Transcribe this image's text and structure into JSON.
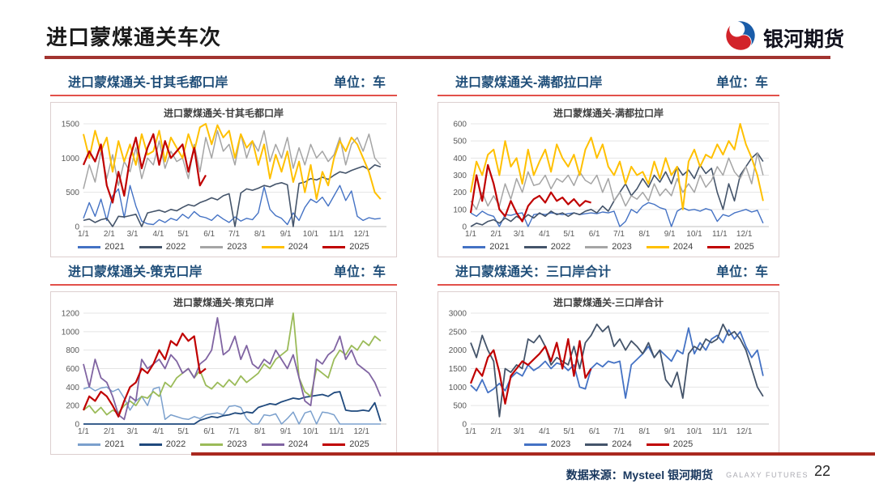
{
  "slide": {
    "title": "进口蒙煤通关车次",
    "logo_text": "银河期货",
    "footer_source": "数据来源：Mysteel 银河期货",
    "footer_brand": "GALAXY FUTURES",
    "page_number": "22"
  },
  "colors": {
    "title_rule": "#A23430",
    "header_text": "#1F4E79",
    "header_rule": "#E2504A",
    "footer_rule": "#A9291F",
    "logo_blue": "#1A5CA8",
    "logo_red": "#D2232A"
  },
  "chart_data": [
    {
      "type": "line",
      "header_title": "进口蒙煤通关-甘其毛都口岸",
      "unit_label": "单位：车",
      "title": "进口蒙煤通关-甘其毛都口岸",
      "xlabel": "",
      "ylabel": "",
      "ylim": [
        0,
        1500
      ],
      "ytick_step": 500,
      "grid": true,
      "legend_position": "bottom",
      "sample_interval_days": 7,
      "x_tick_labels": [
        "1/1",
        "2/1",
        "3/1",
        "4/1",
        "5/1",
        "6/1",
        "7/1",
        "8/1",
        "9/1",
        "10/1",
        "11/1",
        "12/1"
      ],
      "series": [
        {
          "name": "2021",
          "color": "#4472C4",
          "width": 1.4,
          "values": [
            120,
            350,
            150,
            400,
            90,
            450,
            550,
            130,
            600,
            300,
            80,
            40,
            30,
            100,
            60,
            120,
            90,
            180,
            120,
            220,
            150,
            130,
            90,
            170,
            110,
            60,
            140,
            80,
            120,
            100,
            200,
            580,
            250,
            160,
            120,
            30,
            200,
            90,
            280,
            400,
            350,
            430,
            300,
            450,
            600,
            380,
            520,
            150,
            90,
            130,
            110,
            120
          ]
        },
        {
          "name": "2022",
          "color": "#44546A",
          "width": 1.6,
          "values": [
            90,
            110,
            60,
            100,
            120,
            0,
            150,
            140,
            160,
            180,
            0,
            200,
            220,
            240,
            210,
            250,
            230,
            280,
            320,
            300,
            350,
            380,
            420,
            390,
            450,
            480,
            0,
            490,
            550,
            530,
            560,
            600,
            580,
            620,
            640,
            610,
            0,
            630,
            650,
            700,
            680,
            720,
            690,
            750,
            800,
            780,
            820,
            850,
            880,
            830,
            900,
            870
          ]
        },
        {
          "name": "2023",
          "color": "#A5A5A5",
          "width": 1.5,
          "values": [
            550,
            900,
            650,
            1100,
            700,
            1050,
            600,
            950,
            800,
            1150,
            700,
            1000,
            900,
            1250,
            850,
            1100,
            950,
            1000,
            700,
            1200,
            800,
            1300,
            1000,
            1400,
            1100,
            1200,
            900,
            1350,
            1000,
            1250,
            1100,
            1400,
            950,
            1200,
            1000,
            1300,
            850,
            1150,
            900,
            1200,
            1000,
            1100,
            950,
            1050,
            1300,
            900,
            1200,
            1300,
            1100,
            1350,
            1000,
            900
          ]
        },
        {
          "name": "2024",
          "color": "#FFC000",
          "width": 2,
          "values": [
            1350,
            1000,
            1400,
            1100,
            1300,
            800,
            1250,
            950,
            1200,
            900,
            1350,
            1050,
            1100,
            1400,
            950,
            1300,
            1150,
            1000,
            1350,
            1100,
            1450,
            1500,
            1200,
            1480,
            1300,
            1400,
            1000,
            1350,
            1150,
            1250,
            900,
            1200,
            700,
            1050,
            800,
            1100,
            650,
            950,
            500,
            900,
            400,
            800,
            600,
            1000,
            1250,
            1100,
            1300,
            1200,
            1000,
            800,
            500,
            400
          ]
        },
        {
          "name": "2025",
          "color": "#C00000",
          "width": 2.2,
          "values": [
            900,
            1100,
            950,
            1200,
            600,
            350,
            800,
            450,
            1000,
            1300,
            850,
            1150,
            1350,
            900,
            1250,
            1000,
            1100,
            1200,
            800,
            1150,
            600,
            750
          ]
        }
      ]
    },
    {
      "type": "line",
      "header_title": "进口蒙煤通关-满都拉口岸",
      "unit_label": "单位：车",
      "title": "进口蒙煤通关-满都拉口岸",
      "xlabel": "",
      "ylabel": "",
      "ylim": [
        0,
        600
      ],
      "ytick_step": 100,
      "grid": true,
      "legend_position": "bottom",
      "sample_interval_days": 7,
      "x_tick_labels": [
        "1/1",
        "2/1",
        "3/1",
        "4/1",
        "5/1",
        "6/1",
        "7/1",
        "8/1",
        "9/1",
        "10/1",
        "11/1",
        "12/1"
      ],
      "series": [
        {
          "name": "2021",
          "color": "#4472C4",
          "width": 1.4,
          "values": [
            80,
            60,
            90,
            70,
            60,
            0,
            70,
            65,
            75,
            80,
            0,
            70,
            75,
            70,
            80,
            75,
            70,
            75,
            80,
            70,
            75,
            80,
            75,
            85,
            80,
            90,
            0,
            30,
            100,
            80,
            120,
            140,
            130,
            110,
            100,
            0,
            90,
            110,
            95,
            100,
            90,
            105,
            95,
            30,
            70,
            60,
            80,
            90,
            100,
            85,
            95,
            20
          ]
        },
        {
          "name": "2022",
          "color": "#44546A",
          "width": 1.6,
          "values": [
            0,
            20,
            10,
            30,
            40,
            20,
            50,
            30,
            60,
            40,
            70,
            50,
            80,
            60,
            90,
            70,
            80,
            60,
            80,
            70,
            90,
            100,
            80,
            120,
            90,
            150,
            200,
            250,
            180,
            220,
            280,
            230,
            300,
            260,
            320,
            250,
            350,
            300,
            330,
            280,
            360,
            310,
            340,
            200,
            100,
            250,
            150,
            300,
            350,
            400,
            430,
            380
          ]
        },
        {
          "name": "2023",
          "color": "#A5A5A5",
          "width": 1.5,
          "values": [
            150,
            100,
            200,
            120,
            180,
            120,
            250,
            160,
            280,
            200,
            320,
            240,
            250,
            300,
            220,
            280,
            260,
            300,
            240,
            320,
            270,
            250,
            300,
            200,
            280,
            150,
            200,
            120,
            180,
            160,
            200,
            150,
            250,
            180,
            220,
            180,
            280,
            200,
            250,
            200,
            300,
            230,
            270,
            350,
            300,
            400,
            320,
            280,
            350,
            250,
            430,
            300
          ]
        },
        {
          "name": "2024",
          "color": "#FFC000",
          "width": 2,
          "values": [
            200,
            380,
            300,
            420,
            450,
            300,
            500,
            350,
            400,
            250,
            450,
            300,
            380,
            450,
            320,
            480,
            400,
            350,
            420,
            300,
            450,
            520,
            400,
            480,
            350,
            300,
            380,
            250,
            350,
            300,
            320,
            250,
            380,
            280,
            400,
            300,
            350,
            100,
            380,
            450,
            350,
            420,
            400,
            480,
            420,
            500,
            450,
            600,
            480,
            400,
            300,
            150
          ]
        },
        {
          "name": "2025",
          "color": "#C00000",
          "width": 2.2,
          "values": [
            80,
            300,
            150,
            360,
            250,
            100,
            60,
            150,
            80,
            30,
            120,
            160,
            180,
            140,
            200,
            150,
            170,
            130,
            160,
            120,
            150,
            140
          ]
        }
      ]
    },
    {
      "type": "line",
      "header_title": "进口蒙煤通关-策克口岸",
      "unit_label": "单位：车",
      "title": "进口蒙煤通关-策克口岸",
      "xlabel": "",
      "ylabel": "",
      "ylim": [
        0,
        1200
      ],
      "ytick_step": 200,
      "grid": true,
      "legend_position": "bottom",
      "sample_interval_days": 7,
      "x_tick_labels": [
        "1/1",
        "2/1",
        "3/1",
        "4/1",
        "5/1",
        "6/1",
        "7/1",
        "8/1",
        "9/1",
        "10/1",
        "11/1",
        "12/1"
      ],
      "series": [
        {
          "name": "2021",
          "color": "#7BA0CD",
          "width": 1.5,
          "values": [
            380,
            400,
            360,
            390,
            400,
            350,
            380,
            280,
            150,
            250,
            300,
            200,
            380,
            400,
            50,
            100,
            80,
            60,
            50,
            80,
            60,
            100,
            110,
            120,
            100,
            190,
            200,
            180,
            60,
            0,
            0,
            100,
            90,
            110,
            0,
            60,
            130,
            0,
            120,
            140,
            0,
            130,
            120,
            100,
            0,
            0,
            0,
            0,
            0,
            0,
            0,
            0
          ]
        },
        {
          "name": "2022",
          "color": "#1F497D",
          "width": 1.8,
          "values": [
            0,
            0,
            0,
            0,
            0,
            0,
            0,
            0,
            0,
            0,
            0,
            0,
            0,
            0,
            0,
            0,
            0,
            0,
            0,
            0,
            40,
            60,
            80,
            70,
            90,
            100,
            120,
            110,
            130,
            120,
            180,
            200,
            220,
            210,
            240,
            260,
            280,
            270,
            290,
            300,
            310,
            320,
            300,
            340,
            350,
            150,
            140,
            140,
            150,
            140,
            230,
            30
          ]
        },
        {
          "name": "2023",
          "color": "#9BBB59",
          "width": 1.8,
          "values": [
            150,
            200,
            120,
            180,
            100,
            150,
            120,
            200,
            250,
            200,
            300,
            280,
            350,
            300,
            450,
            400,
            500,
            550,
            600,
            500,
            580,
            420,
            380,
            450,
            400,
            480,
            420,
            520,
            450,
            500,
            550,
            650,
            600,
            700,
            750,
            800,
            1200,
            500,
            350,
            300,
            600,
            550,
            500,
            700,
            800,
            750,
            850,
            800,
            900,
            850,
            950,
            900
          ]
        },
        {
          "name": "2024",
          "color": "#8064A2",
          "width": 1.8,
          "values": [
            650,
            400,
            700,
            500,
            450,
            300,
            100,
            50,
            300,
            250,
            700,
            600,
            650,
            700,
            600,
            750,
            680,
            550,
            600,
            500,
            650,
            700,
            800,
            1150,
            750,
            800,
            950,
            700,
            850,
            650,
            600,
            700,
            650,
            800,
            700,
            600,
            750,
            500,
            250,
            200,
            700,
            650,
            750,
            800,
            950,
            700,
            800,
            650,
            600,
            550,
            450,
            300
          ]
        },
        {
          "name": "2025",
          "color": "#C00000",
          "width": 2.2,
          "values": [
            150,
            300,
            250,
            350,
            300,
            200,
            80,
            250,
            400,
            450,
            600,
            550,
            650,
            800,
            700,
            900,
            850,
            980,
            900,
            950,
            550,
            600
          ]
        }
      ]
    },
    {
      "type": "line",
      "header_title": "进口蒙煤通关：三口岸合计",
      "unit_label": "单位：车",
      "title": "进口蒙煤通关-三口岸合计",
      "xlabel": "",
      "ylabel": "",
      "ylim": [
        0,
        3000
      ],
      "ytick_step": 500,
      "grid": true,
      "legend_position": "bottom",
      "sample_interval_days": 7,
      "x_tick_labels": [
        "1/1",
        "2/1",
        "3/1",
        "4/1",
        "5/1",
        "6/1",
        "7/1",
        "8/1",
        "9/1",
        "10/1",
        "11/1",
        "12/1"
      ],
      "series": [
        {
          "name": "2023",
          "color": "#4472C4",
          "width": 1.8,
          "values": [
            1050,
            900,
            1200,
            850,
            950,
            1100,
            900,
            1250,
            1400,
            1300,
            1600,
            1450,
            1550,
            1700,
            1500,
            1650,
            1600,
            1450,
            1600,
            1000,
            950,
            1500,
            1650,
            1550,
            1700,
            1650,
            1700,
            700,
            1600,
            1750,
            1900,
            2100,
            1800,
            2000,
            1850,
            1700,
            2000,
            1900,
            2600,
            1900,
            2200,
            2000,
            2300,
            2400,
            2200,
            2550,
            2300,
            2500,
            2100,
            1800,
            2000,
            1300
          ]
        },
        {
          "name": "2024",
          "color": "#44546A",
          "width": 1.8,
          "values": [
            2200,
            1800,
            2400,
            2000,
            1700,
            200,
            1500,
            1400,
            1600,
            1500,
            2300,
            2200,
            2400,
            2100,
            1600,
            1800,
            1700,
            1600,
            2100,
            1500,
            2200,
            2400,
            2700,
            2500,
            2650,
            2100,
            2300,
            2000,
            2250,
            2100,
            1900,
            2200,
            1800,
            2000,
            1200,
            1000,
            1400,
            700,
            1900,
            2100,
            2000,
            2300,
            2200,
            2300,
            2700,
            2400,
            2500,
            2300,
            2000,
            1500,
            1000,
            750
          ]
        },
        {
          "name": "2025",
          "color": "#C00000",
          "width": 2.2,
          "values": [
            1100,
            1500,
            1300,
            1800,
            2000,
            1400,
            550,
            1300,
            1500,
            1700,
            1600,
            1750,
            1900,
            2100,
            1700,
            2200,
            1500,
            2300,
            1300,
            2250,
            1250,
            1500
          ]
        }
      ]
    }
  ]
}
